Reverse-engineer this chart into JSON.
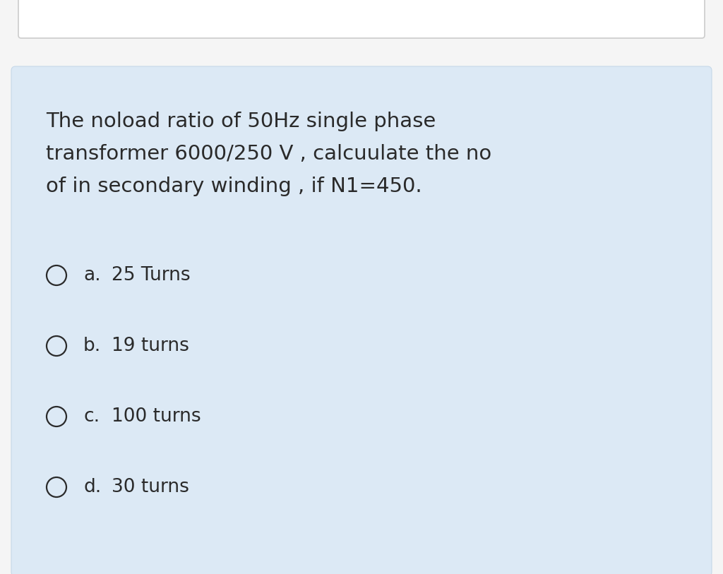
{
  "background_color": "#ffffff",
  "card_color": "#dce9f5",
  "question_text_line1": "The noload ratio of 50Hz single phase",
  "question_text_line2": "transformer 6000/250 V , calcuulate the no",
  "question_text_line3": "of in secondary winding , if N1=450.",
  "options": [
    {
      "label": "a.",
      "text": "25 Turns"
    },
    {
      "label": "b.",
      "text": "19 turns"
    },
    {
      "label": "c.",
      "text": "100 turns"
    },
    {
      "label": "d.",
      "text": "30 turns"
    }
  ],
  "text_color": "#2a2a2a",
  "option_font_size": 19,
  "question_font_size": 21,
  "top_box_color": "#ffffff",
  "top_box_border": "#cccccc",
  "card_border_color": "#c5d8e8",
  "white_bg": "#f5f5f5"
}
